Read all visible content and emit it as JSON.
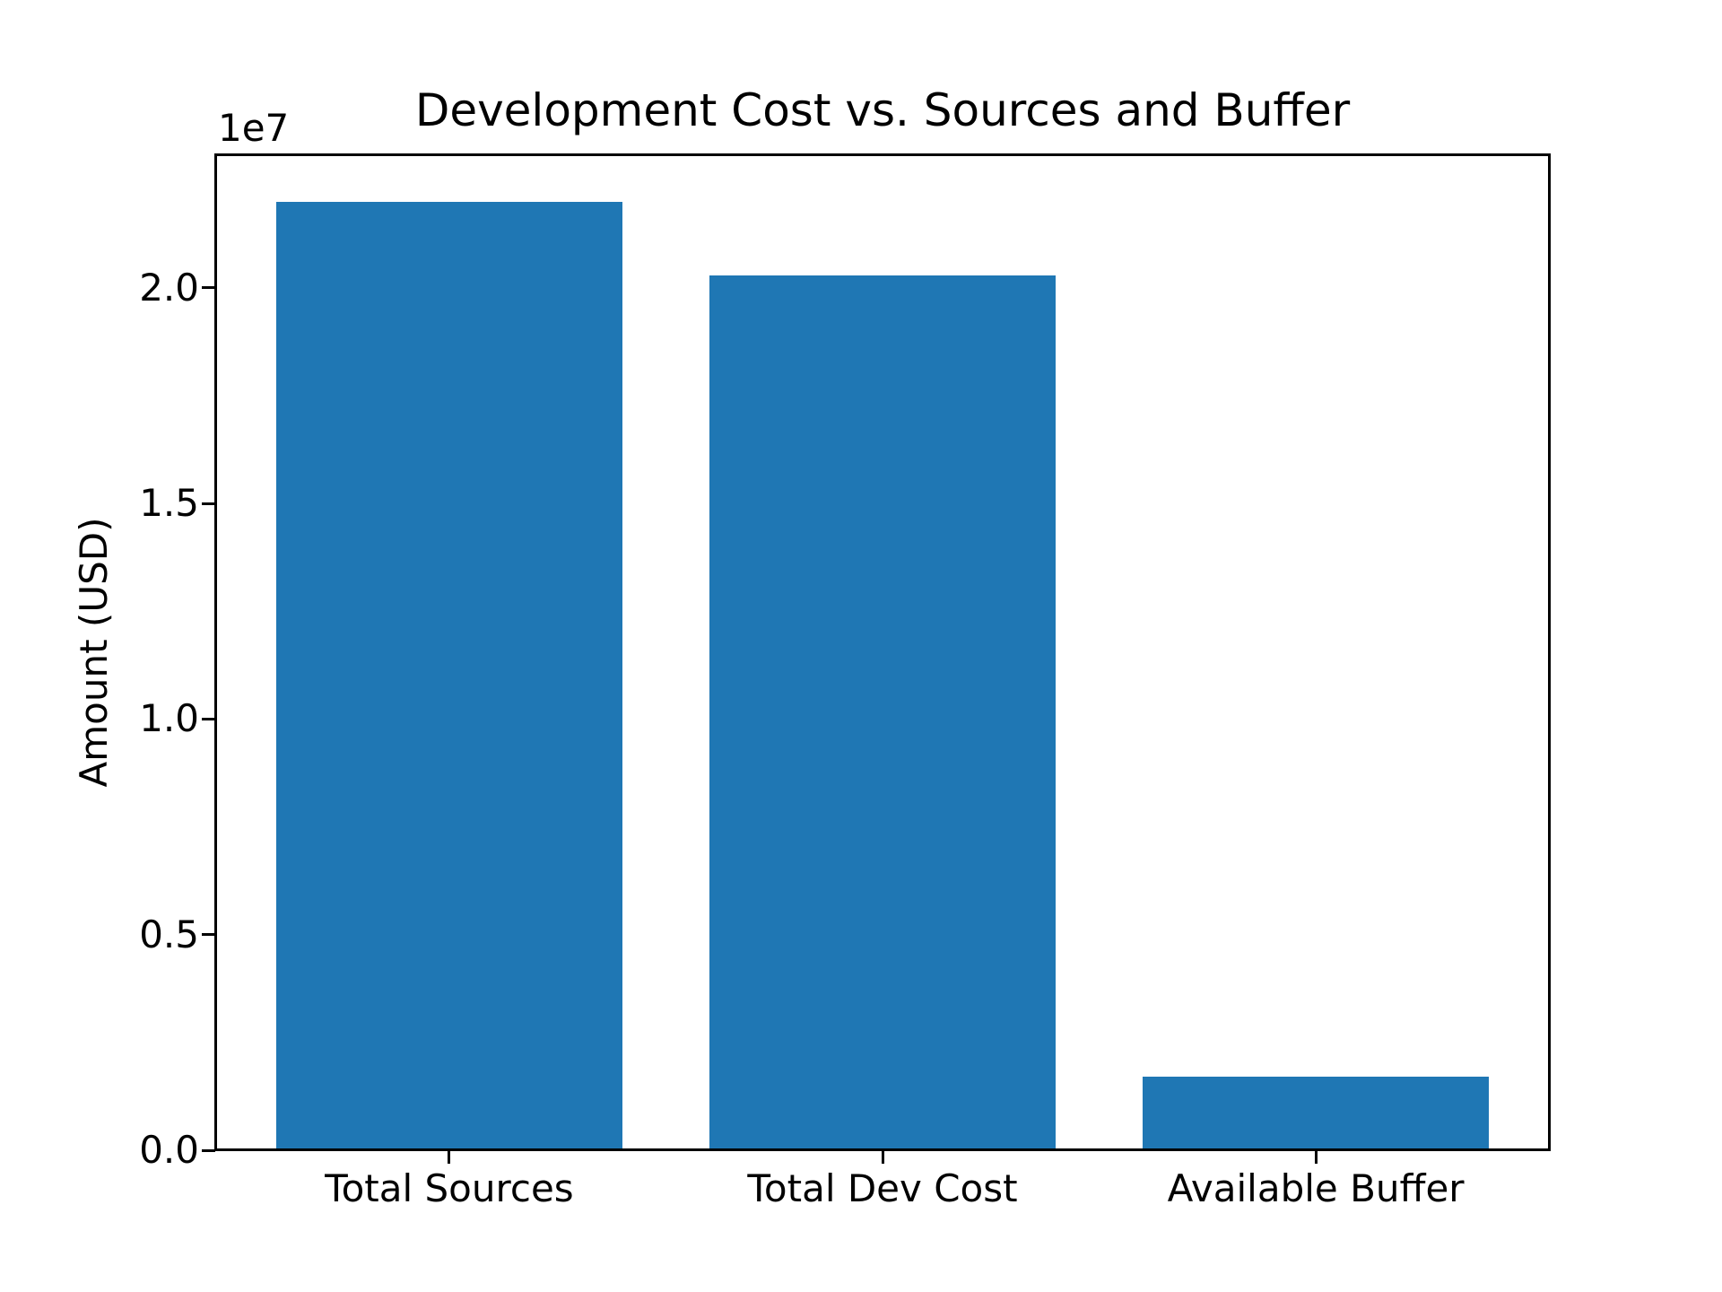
{
  "figure": {
    "title": "Development Cost vs. Sources and Buffer",
    "ylabel": "Amount (USD)",
    "offset_label": "1e7",
    "background_color": "#ffffff",
    "text_color": "#000000"
  },
  "chart_data": {
    "type": "bar",
    "categories": [
      "Total Sources",
      "Total Dev Cost",
      "Available Buffer"
    ],
    "values": [
      22000000,
      20300000,
      1700000
    ],
    "title": "Development Cost vs. Sources and Buffer",
    "xlabel": "",
    "ylabel": "Amount (USD)",
    "ylim": [
      0,
      23100000
    ],
    "yticks": {
      "values": [
        0,
        5000000,
        10000000,
        15000000,
        20000000
      ],
      "labels": [
        "0.0",
        "0.5",
        "1.0",
        "1.5",
        "2.0"
      ]
    },
    "offset_text": "1e7",
    "bar_color": "#1f77b4",
    "grid": false,
    "legend_position": "none"
  }
}
